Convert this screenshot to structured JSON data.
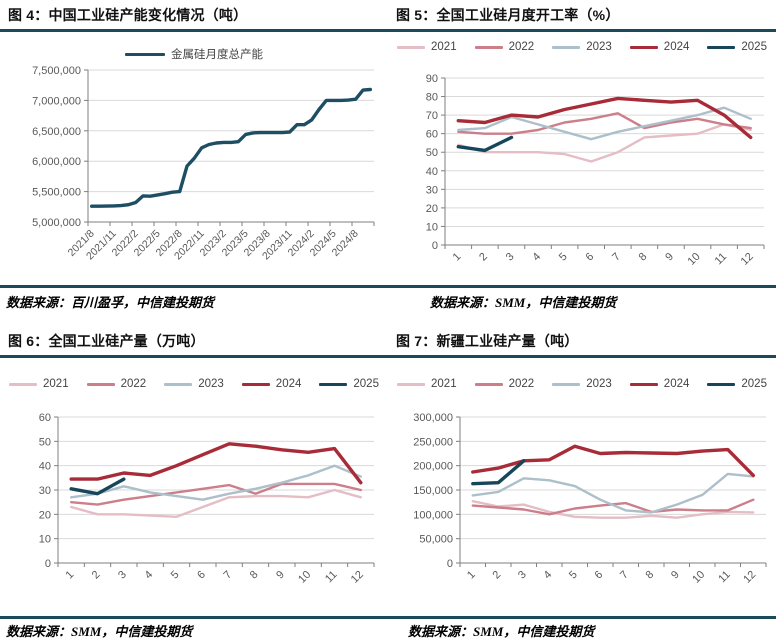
{
  "colors": {
    "rule_accent": "#1c4a5a",
    "grid": "#d9d9d9",
    "axis": "#7f7f7f",
    "tick_label": "#595959"
  },
  "chart_data": [
    {
      "figure_label": "图 4",
      "title": "图 4：中国工业硅产能变化情况（吨）",
      "type": "line",
      "legend_position": "top",
      "ylim": [
        5000000,
        7500000
      ],
      "ytick_step": 500000,
      "xtick_labels": [
        "2021/8",
        "2021/11",
        "2022/2",
        "2022/5",
        "2022/8",
        "2022/11",
        "2023/2",
        "2023/5",
        "2023/8",
        "2023/11",
        "2024/2",
        "2024/5",
        "2024/8"
      ],
      "xtick_every": 3,
      "grid": true,
      "series": [
        {
          "name": "金属硅月度总产能",
          "color": "#1d4e63",
          "width": 3.4,
          "values": [
            5260000,
            5260000,
            5262000,
            5265000,
            5270000,
            5285000,
            5320000,
            5430000,
            5425000,
            5445000,
            5465000,
            5490000,
            5500000,
            5920000,
            6050000,
            6220000,
            6275000,
            6300000,
            6310000,
            6310000,
            6320000,
            6440000,
            6465000,
            6470000,
            6470000,
            6470000,
            6470000,
            6480000,
            6600000,
            6600000,
            6680000,
            6850000,
            7000000,
            7000000,
            7000000,
            7005000,
            7020000,
            7170000,
            7180000
          ]
        }
      ],
      "source": "数据来源：百川盈孚，中信建投期货"
    },
    {
      "figure_label": "图 5",
      "title": "图 5：全国工业硅月度开工率（%）",
      "type": "line",
      "legend_position": "top",
      "ylim": [
        0,
        90
      ],
      "ytick_step": 10,
      "xtick_labels": [
        "1",
        "2",
        "3",
        "4",
        "5",
        "6",
        "7",
        "8",
        "9",
        "10",
        "11",
        "12"
      ],
      "xtick_every": 1,
      "grid": true,
      "series": [
        {
          "name": "2021",
          "color": "#e4bdc5",
          "width": 2.4,
          "values": [
            54,
            50,
            50,
            50,
            49,
            45,
            50,
            58,
            59,
            60,
            65,
            62
          ]
        },
        {
          "name": "2022",
          "color": "#cc7f8b",
          "width": 2.4,
          "values": [
            61,
            60,
            60,
            62,
            66,
            68,
            71,
            63,
            66,
            68,
            65,
            63
          ]
        },
        {
          "name": "2023",
          "color": "#adbfca",
          "width": 2.4,
          "values": [
            62,
            63,
            69,
            65,
            61,
            57,
            61,
            64,
            67,
            70,
            74,
            68
          ]
        },
        {
          "name": "2024",
          "color": "#a82b38",
          "width": 3.4,
          "values": [
            67,
            66,
            70,
            69,
            73,
            76,
            79,
            78,
            77,
            78,
            70,
            58
          ]
        },
        {
          "name": "2025",
          "color": "#17465a",
          "width": 3.4,
          "values": [
            53,
            51,
            58
          ]
        }
      ],
      "source": "数据来源：SMM，中信建投期货"
    },
    {
      "figure_label": "图 6",
      "title": "图 6：全国工业硅产量（万吨）",
      "type": "line",
      "legend_position": "top",
      "ylim": [
        0,
        60
      ],
      "ytick_step": 10,
      "xtick_labels": [
        "1",
        "2",
        "3",
        "4",
        "5",
        "6",
        "7",
        "8",
        "9",
        "10",
        "11",
        "12"
      ],
      "xtick_every": 1,
      "grid": true,
      "series": [
        {
          "name": "2021",
          "color": "#e4bdc5",
          "width": 2.4,
          "values": [
            23,
            20,
            20,
            19.5,
            19,
            23,
            27,
            27.5,
            27.5,
            27,
            30,
            27
          ]
        },
        {
          "name": "2022",
          "color": "#cc7f8b",
          "width": 2.4,
          "values": [
            25,
            24,
            26,
            27.5,
            29,
            30.5,
            32,
            28.5,
            32.5,
            32.5,
            32.5,
            30
          ]
        },
        {
          "name": "2023",
          "color": "#adbfca",
          "width": 2.4,
          "values": [
            27,
            28.5,
            31.5,
            29,
            27.5,
            26,
            28.5,
            30.5,
            33,
            36,
            40,
            35.5
          ]
        },
        {
          "name": "2024",
          "color": "#a82b38",
          "width": 3.4,
          "values": [
            34.5,
            34.5,
            37,
            36,
            40,
            44.5,
            49,
            48,
            46.5,
            45.5,
            47,
            33
          ]
        },
        {
          "name": "2025",
          "color": "#17465a",
          "width": 3.4,
          "values": [
            30.5,
            28.5,
            34.5
          ]
        }
      ],
      "source": "数据来源：SMM，中信建投期货"
    },
    {
      "figure_label": "图 7",
      "title": "图 7：新疆工业硅产量（吨）",
      "type": "line",
      "legend_position": "top",
      "ylim": [
        0,
        300000
      ],
      "ytick_step": 50000,
      "xtick_labels": [
        "1",
        "2",
        "3",
        "4",
        "5",
        "6",
        "7",
        "8",
        "9",
        "10",
        "11",
        "12"
      ],
      "xtick_every": 1,
      "grid": true,
      "series": [
        {
          "name": "2021",
          "color": "#e4bdc5",
          "width": 2.4,
          "values": [
            127000,
            116000,
            120000,
            105000,
            95000,
            93000,
            93000,
            97000,
            93000,
            100000,
            105000,
            104000
          ]
        },
        {
          "name": "2022",
          "color": "#cc7f8b",
          "width": 2.4,
          "values": [
            118000,
            114000,
            110000,
            100000,
            112000,
            118000,
            123000,
            105000,
            110000,
            108000,
            108000,
            130000
          ]
        },
        {
          "name": "2023",
          "color": "#adbfca",
          "width": 2.4,
          "values": [
            139000,
            146000,
            174000,
            170000,
            158000,
            130000,
            108000,
            104000,
            120000,
            140000,
            183000,
            178000
          ]
        },
        {
          "name": "2024",
          "color": "#a82b38",
          "width": 3.4,
          "values": [
            187000,
            195000,
            210000,
            212000,
            240000,
            225000,
            227000,
            226000,
            225000,
            230000,
            233000,
            180000
          ]
        },
        {
          "name": "2025",
          "color": "#17465a",
          "width": 3.4,
          "values": [
            163000,
            165000,
            210000
          ]
        }
      ],
      "source": "数据来源：SMM，中信建投期货"
    }
  ]
}
